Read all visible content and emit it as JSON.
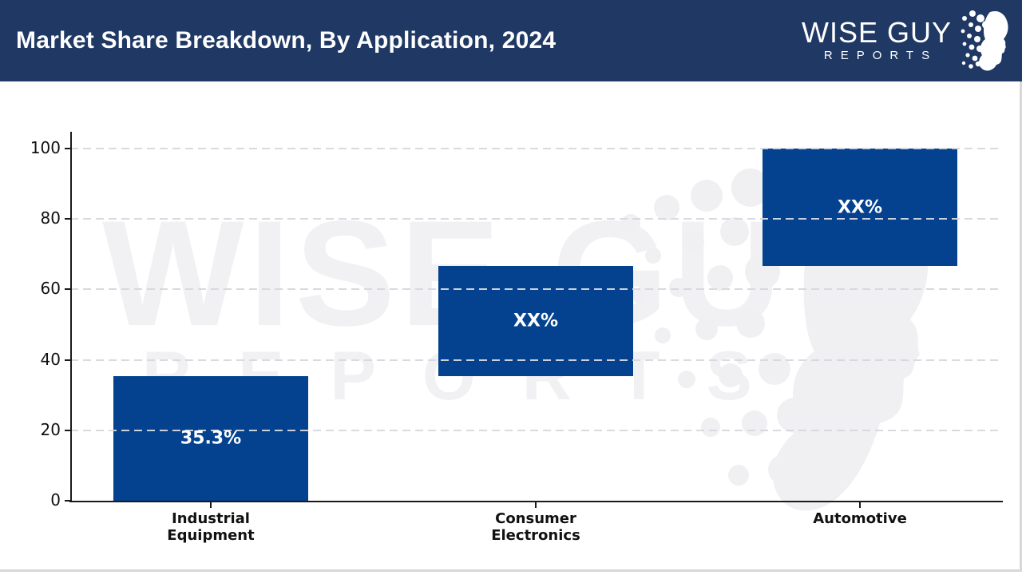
{
  "header": {
    "title": "Market Share Breakdown, By Application, 2024",
    "logo": {
      "brand_line1": "WISE GUY",
      "brand_line2": "REPORTS"
    },
    "bg_color": "#1f3864",
    "text_color": "#ffffff"
  },
  "watermark": {
    "line1": "WISE GUY",
    "line2": "REPORTS"
  },
  "chart_data": {
    "type": "bar",
    "variant": "waterfall",
    "title": "Market Share Breakdown, By Application, 2024",
    "categories": [
      [
        "Industrial",
        "Equipment"
      ],
      [
        "Consumer",
        "Electronics"
      ],
      [
        "Automotive"
      ]
    ],
    "segments": [
      {
        "category": "Industrial Equipment",
        "start": 0,
        "end": 35.3,
        "label": "35.3%"
      },
      {
        "category": "Consumer Electronics",
        "start": 35.3,
        "end": 66.7,
        "label": "XX%"
      },
      {
        "category": "Automotive",
        "start": 66.7,
        "end": 100,
        "label": "XX%"
      }
    ],
    "yticks": [
      0,
      20,
      40,
      60,
      80,
      100
    ],
    "ylim": [
      0,
      104.8
    ],
    "xlabel": "",
    "ylabel": "",
    "grid": "dashed-horizontal",
    "legend": "none",
    "bar_color": "#04428F",
    "bar_label_color": "#FFFFFF",
    "axis_color": "#1A1A1A",
    "grid_color": "#D9D9D9"
  }
}
